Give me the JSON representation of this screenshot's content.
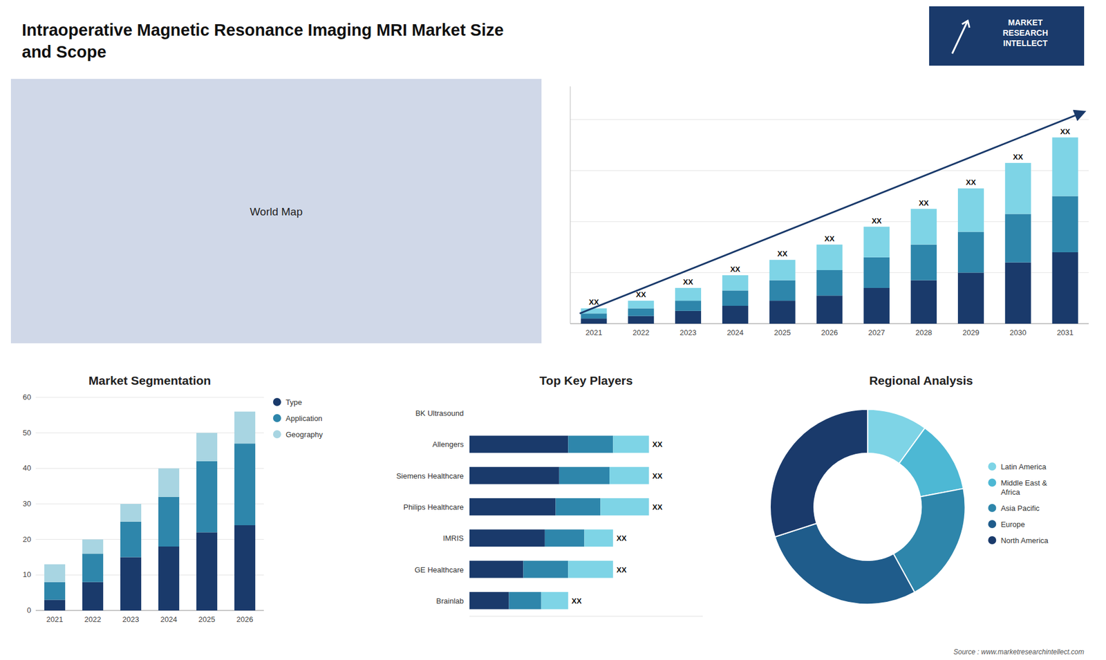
{
  "title": "Intraoperative Magnetic Resonance Imaging MRI Market Size\nand Scope",
  "annotations": [
    "MARKET\nRESEARCH\nINTELLECT",
    "Source : www.marketresearchintellect.com"
  ],
  "chart_data": [
    {
      "type": "map",
      "color": "#d0d8e8",
      "annotations": [
        "World Map"
      ]
    },
    {
      "type": "bar",
      "stacked": true,
      "color": "#1a3a6b",
      "categories": [
        "2021",
        "2022",
        "2023",
        "2024",
        "2025",
        "2026",
        "2027",
        "2028",
        "2029",
        "2030",
        "2031"
      ],
      "series": [
        {
          "color": "#1a3a6b",
          "values": [
            2,
            3,
            5,
            7,
            9,
            11,
            14,
            17,
            20,
            24,
            28
          ]
        },
        {
          "color": "#2e86ab",
          "values": [
            2,
            3,
            4,
            6,
            8,
            10,
            12,
            14,
            16,
            19,
            22
          ]
        },
        {
          "color": "#7ed4e6",
          "values": [
            2,
            3,
            5,
            6,
            8,
            10,
            12,
            14,
            17,
            20,
            23
          ]
        }
      ],
      "ylim": [
        0,
        93
      ],
      "yticks": [
        0,
        20,
        40,
        60,
        80
      ],
      "grid": true,
      "tick_labels": "x",
      "annotations": [
        "XX",
        "XX",
        "XX",
        "XX",
        "XX",
        "XX",
        "XX",
        "XX",
        "XX",
        "XX",
        "XX"
      ]
    },
    {
      "type": "bar",
      "stacked": true,
      "title": "Market Segmentation",
      "categories": [
        "2021",
        "2022",
        "2023",
        "2024",
        "2025",
        "2026"
      ],
      "series": [
        {
          "name": "Type",
          "color": "#1a3a6b",
          "values": [
            3,
            8,
            15,
            18,
            22,
            24
          ]
        },
        {
          "name": "Application",
          "color": "#2e86ab",
          "values": [
            5,
            8,
            10,
            14,
            20,
            23
          ]
        },
        {
          "name": "Geography",
          "color": "#a8d5e2",
          "values": [
            5,
            4,
            5,
            8,
            8,
            9
          ]
        }
      ],
      "ylim": [
        0,
        60
      ],
      "yticks": [
        0,
        10,
        20,
        30,
        40,
        50,
        60
      ],
      "grid": true,
      "legend": "right"
    },
    {
      "type": "bar",
      "stacked": true,
      "orientation": "horizontal",
      "title": "Top Key Players",
      "categories": [
        "BK Ultrasound",
        "Allengers",
        "Siemens Healthcare",
        "Philips Healthcare",
        "IMRIS",
        "GE Healthcare",
        "Brainlab"
      ],
      "series": [
        {
          "color": "#1a3a6b",
          "values": [
            0,
            55,
            50,
            48,
            42,
            30,
            22
          ]
        },
        {
          "color": "#2e86ab",
          "values": [
            0,
            25,
            28,
            25,
            22,
            25,
            18
          ]
        },
        {
          "color": "#7ed4e6",
          "values": [
            0,
            20,
            22,
            27,
            16,
            25,
            15
          ]
        }
      ],
      "xlim": [
        0,
        130
      ],
      "tick_labels": "y",
      "annotations": [
        "XX",
        "XX",
        "XX",
        "XX",
        "XX",
        "XX"
      ]
    },
    {
      "type": "pie",
      "title": "Regional Analysis",
      "categories": [
        "Latin America",
        "Middle East &\nAfrica",
        "Asia Pacific",
        "Europe",
        "North America"
      ],
      "values": [
        10,
        12,
        20,
        28,
        30
      ],
      "colors": [
        "#7ed4e6",
        "#4db8d4",
        "#2e86ab",
        "#1f5c8b",
        "#1a3a6b"
      ],
      "legend": "right"
    }
  ]
}
